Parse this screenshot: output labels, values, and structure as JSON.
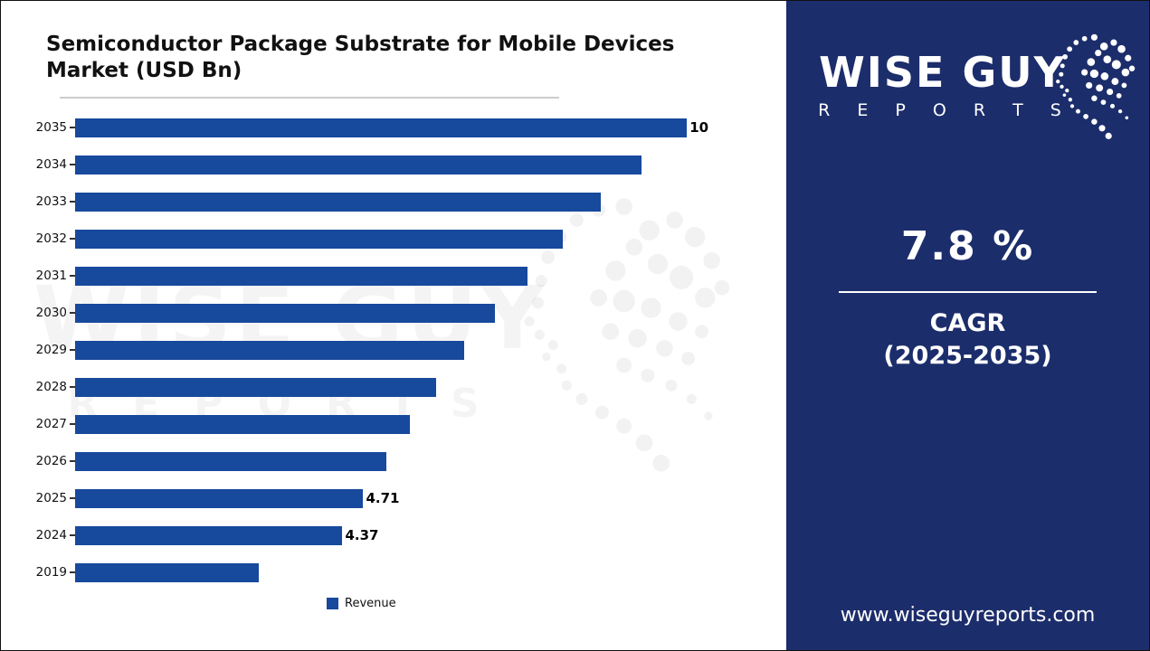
{
  "chart_data": {
    "type": "bar",
    "orientation": "horizontal",
    "title": "Semiconductor Package Substrate for Mobile Devices Market (USD Bn)",
    "categories": [
      "2035",
      "2034",
      "2033",
      "2032",
      "2031",
      "2030",
      "2029",
      "2028",
      "2027",
      "2026",
      "2025",
      "2024",
      "2019"
    ],
    "values": [
      10,
      9.26,
      8.59,
      7.97,
      7.39,
      6.86,
      6.36,
      5.9,
      5.47,
      5.08,
      4.71,
      4.37,
      3.0
    ],
    "bar_labels": [
      "10",
      "",
      "",
      "",
      "",
      "",
      "",
      "",
      "",
      "",
      "4.71",
      "4.37",
      ""
    ],
    "xlim": [
      0,
      10.5
    ],
    "bar_color": "#17499d",
    "grid": false,
    "legend_label": "Revenue",
    "legend_position": "bottom",
    "xlabel": "",
    "ylabel": ""
  },
  "watermark": {
    "line1": "WISE GUY",
    "line2": "REPORTS"
  },
  "sidebar": {
    "logo_line1": "WISE GUY",
    "logo_line2": "R E P O R T S",
    "cagr_value": "7.8 %",
    "cagr_label_line1": "CAGR",
    "cagr_label_line2": "(2025-2035)",
    "website": "www.wiseguyreports.com",
    "background_color": "#1c2d6b"
  }
}
